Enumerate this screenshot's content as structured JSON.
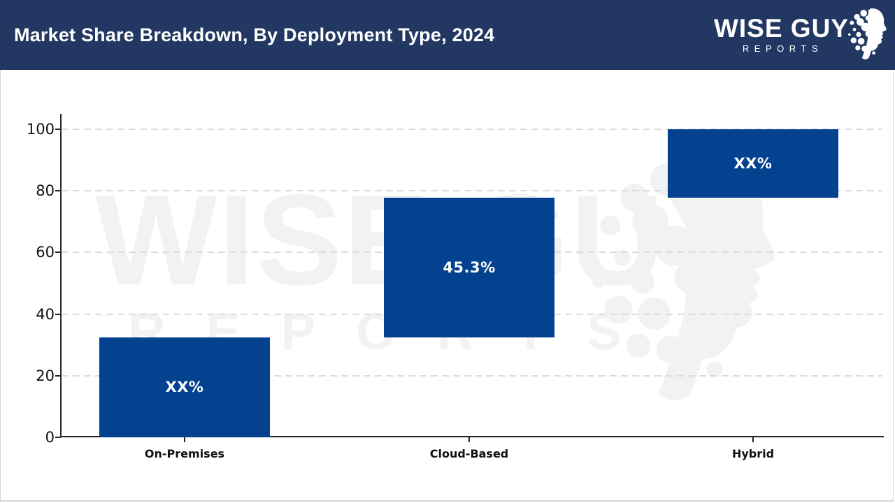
{
  "header": {
    "title": "Market Share Breakdown, By Deployment Type, 2024",
    "logo": {
      "line1": "WISE GUY",
      "line2": "REPORTS"
    }
  },
  "watermark": {
    "line1": "WISE GUY",
    "line2": "REPORTS"
  },
  "chart_data": {
    "type": "bar",
    "subtype": "waterfall",
    "title": "Market Share Breakdown, By Deployment Type, 2024",
    "categories": [
      "On-Premises",
      "Cloud-Based",
      "Hybrid"
    ],
    "segments": [
      {
        "category": "On-Premises",
        "start": 0,
        "end": 32.5,
        "value": null,
        "label": "XX%"
      },
      {
        "category": "Cloud-Based",
        "start": 32.5,
        "end": 77.8,
        "value": 45.3,
        "label": "45.3%"
      },
      {
        "category": "Hybrid",
        "start": 77.8,
        "end": 100,
        "value": null,
        "label": "XX%"
      }
    ],
    "xlabel": "",
    "ylabel": "",
    "ylim": [
      0,
      105
    ],
    "yticks": [
      0,
      20,
      40,
      60,
      80,
      100
    ],
    "grid": "horizontal-dashed",
    "legend": "none",
    "colors": {
      "bar": "#04418f",
      "bar_label": "#ffffff",
      "axis": "#262626",
      "grid": "#dcdcdc",
      "header_bg": "#223862",
      "watermark": "#f2f2f4",
      "tick_text": "#111111"
    }
  }
}
